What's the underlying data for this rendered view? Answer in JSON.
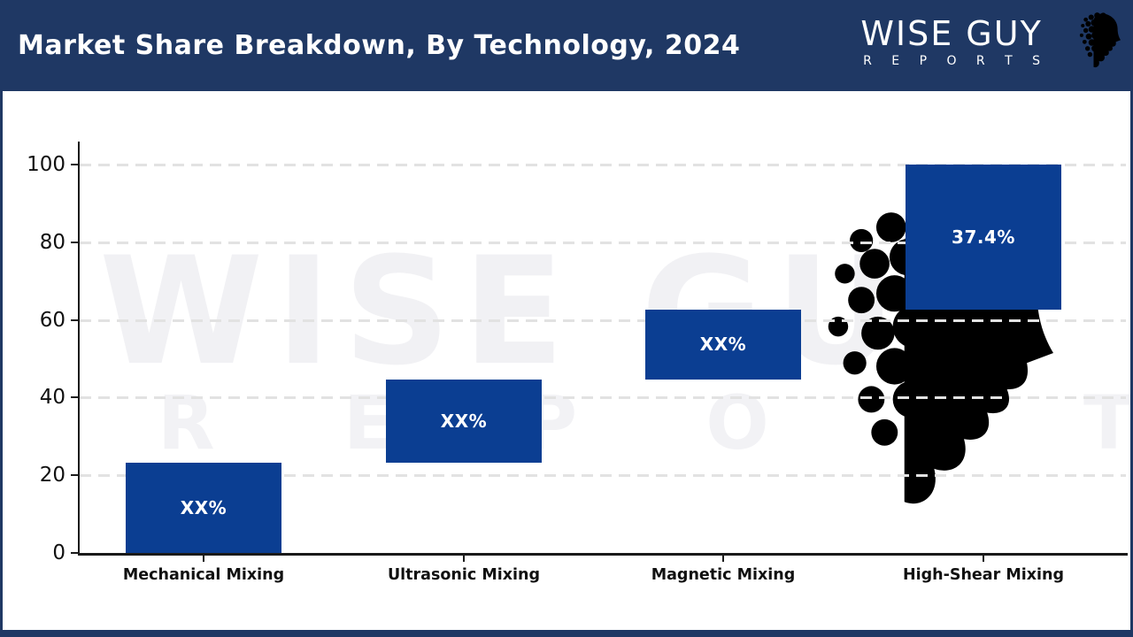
{
  "header": {
    "title": "Market Share Breakdown, By Technology, 2024",
    "logo": {
      "wordmark": "WISE GUY",
      "subtext": "R E P O R T S"
    }
  },
  "watermark": {
    "wordmark": "WISE GUY",
    "subtext": "R E P O R T S"
  },
  "colors": {
    "header_navy": "#1F3864",
    "bar_blue": "#0B3E92",
    "grid_gray": "#E2E2E2",
    "watermark_gray": "#F1F1F4",
    "axis_black": "#1A1A1A",
    "title_white": "#FFFFFF"
  },
  "chart_data": {
    "type": "bar",
    "variant": "waterfall",
    "title": "Market Share Breakdown, By Technology, 2024",
    "xlabel": "",
    "ylabel": "",
    "categories": [
      "Mechanical Mixing",
      "Ultrasonic Mixing",
      "Magnetic Mixing",
      "High-Shear Mixing"
    ],
    "segments": [
      {
        "category": "Mechanical Mixing",
        "start": 0,
        "end": 23.2,
        "value": 23.2,
        "bar_label": "XX%"
      },
      {
        "category": "Ultrasonic Mixing",
        "start": 23.2,
        "end": 44.7,
        "value": 21.5,
        "bar_label": "XX%"
      },
      {
        "category": "Magnetic Mixing",
        "start": 44.7,
        "end": 62.6,
        "value": 17.9,
        "bar_label": "XX%"
      },
      {
        "category": "High-Shear Mixing",
        "start": 62.6,
        "end": 100,
        "value": 37.4,
        "bar_label": "37.4%"
      }
    ],
    "yticks": [
      0,
      20,
      40,
      60,
      80,
      100
    ],
    "ylim": [
      0,
      105
    ],
    "grid": "horizontal-dashed",
    "legend": "none"
  }
}
